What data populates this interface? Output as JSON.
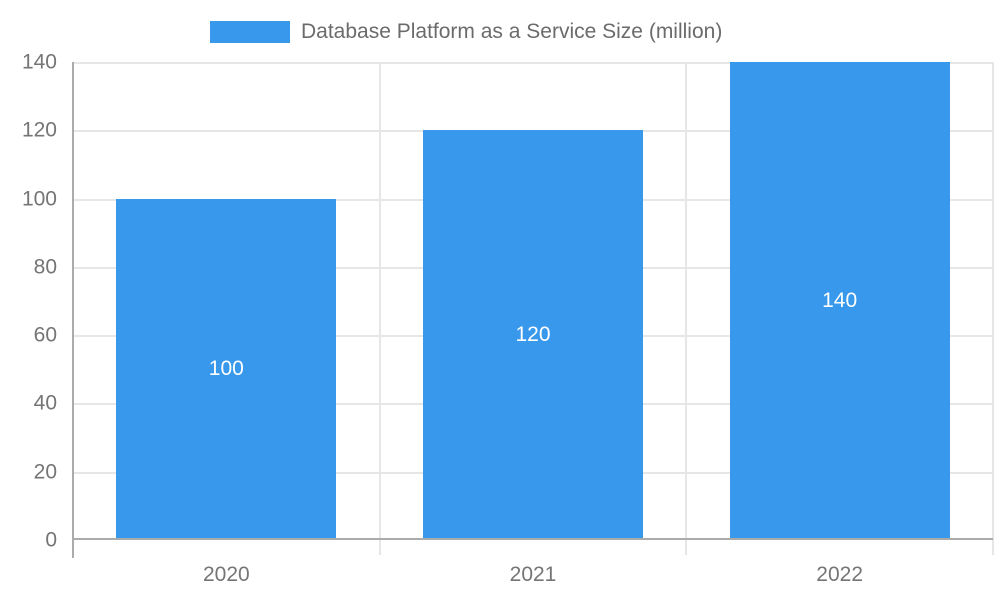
{
  "chart_data": {
    "type": "bar",
    "title": "Database Platform as a Service Size (million)",
    "legend": {
      "label": "Database Platform as a Service Size (million)",
      "position": "top"
    },
    "categories": [
      "2020",
      "2021",
      "2022"
    ],
    "series": [
      {
        "name": "Database Platform as a Service Size (million)",
        "values": [
          100,
          120,
          140
        ],
        "value_labels": [
          "100",
          "120",
          "140"
        ]
      }
    ],
    "xlabel": "",
    "ylabel": "",
    "ylim": [
      0,
      140
    ],
    "y_ticks": [
      0,
      20,
      40,
      60,
      80,
      100,
      120,
      140
    ],
    "grid": true
  },
  "colors": {
    "bar": "#3899ec",
    "value_label": "#ffffff",
    "gridline": "#e6e6e6",
    "axis_line": "#ababab",
    "tick_label": "#757575",
    "legend_text": "#6b6b6b",
    "background": "#ffffff"
  }
}
